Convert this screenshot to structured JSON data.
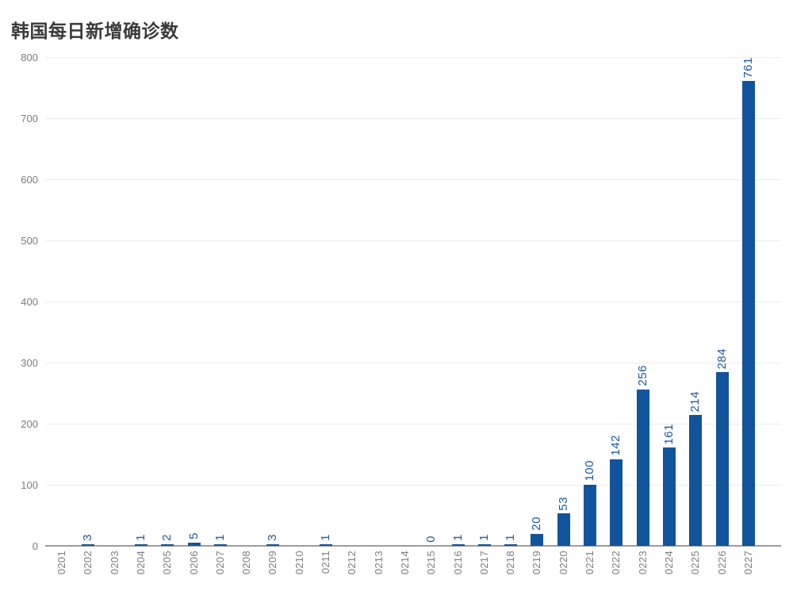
{
  "header": {
    "title": "韩国每日新增确诊数"
  },
  "chart_data": {
    "type": "bar",
    "title": "韩国每日新增确诊数",
    "categories": [
      "0201",
      "0202",
      "0203",
      "0204",
      "0205",
      "0206",
      "0207",
      "0208",
      "0209",
      "0210",
      "0211",
      "0212",
      "0213",
      "0214",
      "0215",
      "0216",
      "0217",
      "0218",
      "0219",
      "0220",
      "0221",
      "0222",
      "0223",
      "0224",
      "0225",
      "0226",
      "0227"
    ],
    "values": [
      null,
      3,
      null,
      1,
      2,
      5,
      1,
      null,
      3,
      null,
      1,
      null,
      null,
      null,
      0,
      1,
      1,
      1,
      20,
      53,
      100,
      142,
      256,
      161,
      214,
      284,
      761
    ],
    "xlabel": "",
    "ylabel": "",
    "ylim": [
      0,
      800
    ],
    "yticks": [
      0,
      100,
      200,
      300,
      400,
      500,
      600,
      700,
      800
    ],
    "grid": true,
    "legend": "none",
    "value_labels_shown": true,
    "label_rotation_degrees": 90,
    "colors": {
      "bar": "#12549b",
      "value_label": "#1a5aa5",
      "axis_text": "#7c7c7c",
      "gridline": "#ececec",
      "baseline": "#9c9c9c",
      "title": "#3a3a3a",
      "background": "#ffffff"
    }
  }
}
